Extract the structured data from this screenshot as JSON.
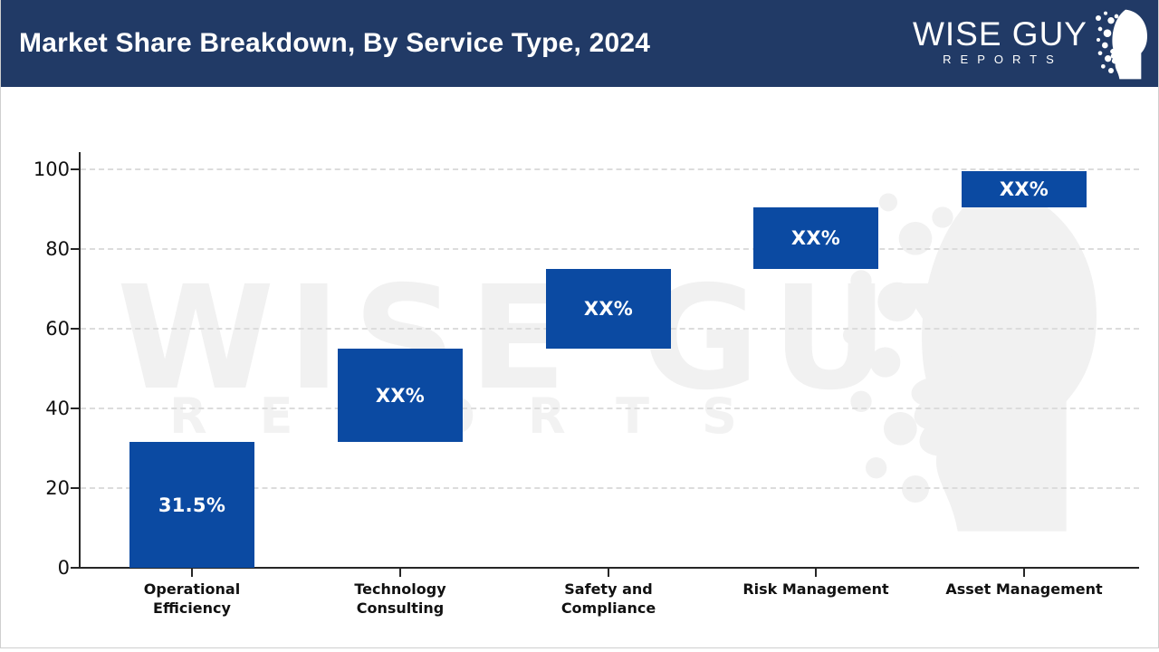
{
  "header": {
    "title": "Market Share Breakdown, By Service Type, 2024",
    "logo": {
      "line1": "WISE GUY",
      "line2": "REPORTS"
    }
  },
  "watermark": {
    "line1": "WISE GUY",
    "line2": "REPORTS"
  },
  "colors": {
    "header_bg": "#213a66",
    "bar_fill": "#0b4aa2",
    "bar_label_text": "#ffffff",
    "title_text": "#ffffff",
    "watermark_gray": "#f1f1f1",
    "gridline": "#dcdcdc",
    "axis": "#262626"
  },
  "chart_data": {
    "type": "bar",
    "subtype": "waterfall",
    "title": "Market Share Breakdown, By Service Type, 2024",
    "xlabel": "",
    "ylabel": "",
    "categories": [
      "Operational Efficiency",
      "Technology Consulting",
      "Safety and Compliance",
      "Risk Management",
      "Asset Management"
    ],
    "category_lines": [
      [
        "Operational",
        "Efficiency"
      ],
      [
        "Technology",
        "Consulting"
      ],
      [
        "Safety and",
        "Compliance"
      ],
      [
        "Risk Management"
      ],
      [
        "Asset Management"
      ]
    ],
    "segments": [
      [
        0,
        31.5
      ],
      [
        31.5,
        55
      ],
      [
        55,
        75
      ],
      [
        75,
        90.5
      ],
      [
        90.5,
        99.5
      ]
    ],
    "bar_labels": [
      "31.5%",
      "XX%",
      "XX%",
      "XX%",
      "XX%"
    ],
    "yticks": [
      0,
      20,
      40,
      60,
      80,
      100
    ],
    "ylim": [
      0,
      104
    ],
    "grid": "horizontal-dashed",
    "legend": "none"
  }
}
